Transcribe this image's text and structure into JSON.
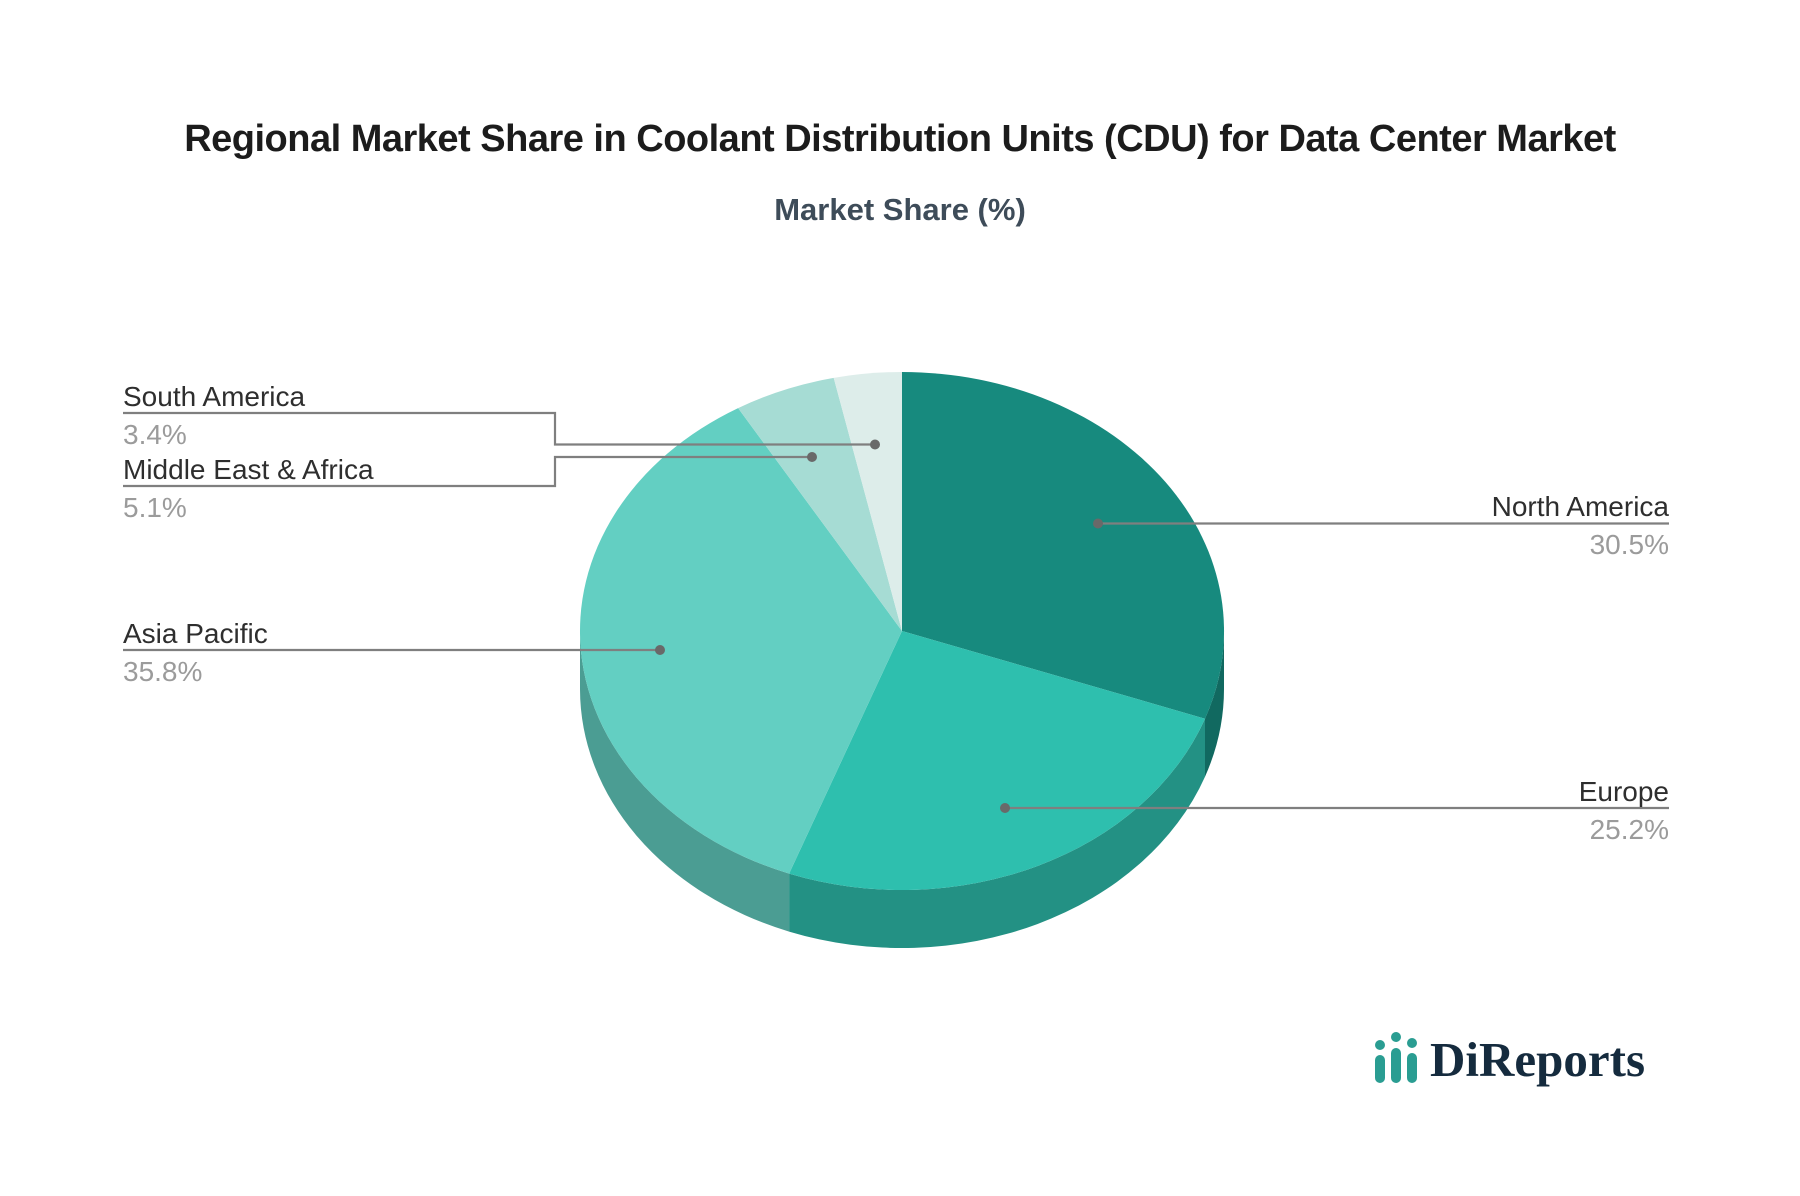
{
  "title": "Regional Market Share in Coolant Distribution Units (CDU) for Data Center Market",
  "subtitle": "Market Share (%)",
  "logo": {
    "text": "DiReports",
    "icon": "bar-chart-dots-icon",
    "icon_color": "#2a9d92",
    "text_color": "#152b3e"
  },
  "style": {
    "leader_line_color": "#7f7f7f",
    "leader_dot_color": "#696969",
    "label_name_color": "#2e2e2e",
    "label_value_color": "#9b9b9b",
    "background": "#ffffff"
  },
  "chart_data": {
    "type": "pie",
    "title": "Regional Market Share in Coolant Distribution Units (CDU) for Data Center Market",
    "subtitle": "Market Share (%)",
    "unit": "%",
    "style": "3d-pie",
    "start_angle_deg": 0,
    "direction": "clockwise",
    "legend_position": "none",
    "slices": [
      {
        "label": "North America",
        "value": 30.5,
        "display": "30.5%",
        "color": "#178a7e"
      },
      {
        "label": "Europe",
        "value": 25.2,
        "display": "25.2%",
        "color": "#2ebfae"
      },
      {
        "label": "Asia Pacific",
        "value": 35.8,
        "display": "35.8%",
        "color": "#63cfc2"
      },
      {
        "label": "Middle East & Africa",
        "value": 5.1,
        "display": "5.1%",
        "color": "#a6dcd4"
      },
      {
        "label": "South America",
        "value": 3.4,
        "display": "3.4%",
        "color": "#ddedea"
      }
    ]
  }
}
